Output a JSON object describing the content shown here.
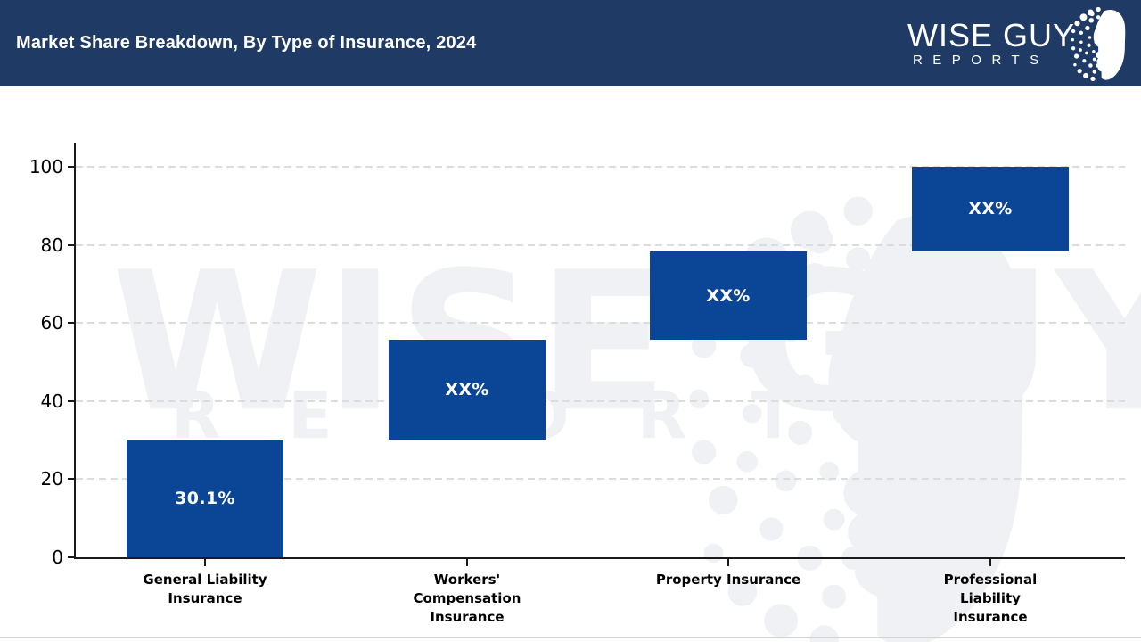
{
  "header": {
    "title": "Market Share Breakdown, By Type of Insurance, 2024",
    "bg_color": "#1f3a64",
    "logo": {
      "line1": "WISE GUY",
      "line2": "REPORTS"
    }
  },
  "watermark": {
    "line1": "WISE GUY",
    "line2": "REPORTS"
  },
  "chart_data": {
    "type": "bar",
    "variant": "waterfall",
    "title": "Market Share Breakdown, By Type of Insurance, 2024",
    "categories": [
      "General Liability\nInsurance",
      "Workers'\nCompensation\nInsurance",
      "Property Insurance",
      "Professional\nLiability\nInsurance"
    ],
    "segments": [
      {
        "category": "General Liability Insurance",
        "start": 0,
        "end": 30.1,
        "label": "30.1%"
      },
      {
        "category": "Workers' Compensation Insurance",
        "start": 30.1,
        "end": 55.6,
        "label": "XX%"
      },
      {
        "category": "Property Insurance",
        "start": 55.6,
        "end": 78.4,
        "label": "XX%"
      },
      {
        "category": "Professional Liability Insurance",
        "start": 78.4,
        "end": 100,
        "label": "XX%"
      }
    ],
    "ylim": [
      0,
      100
    ],
    "yticks": [
      0,
      20,
      40,
      60,
      80,
      100
    ],
    "xlabel": "",
    "ylabel": "",
    "grid": "horizontal-dashed",
    "legend": "none",
    "bar_color": "#0b4596",
    "bar_label_color": "#ffffff",
    "axis_color": "#1a1a1a",
    "grid_color": "#dcdcdc",
    "watermark_color": "#f0f1f4",
    "background_color": "#ffffff"
  }
}
